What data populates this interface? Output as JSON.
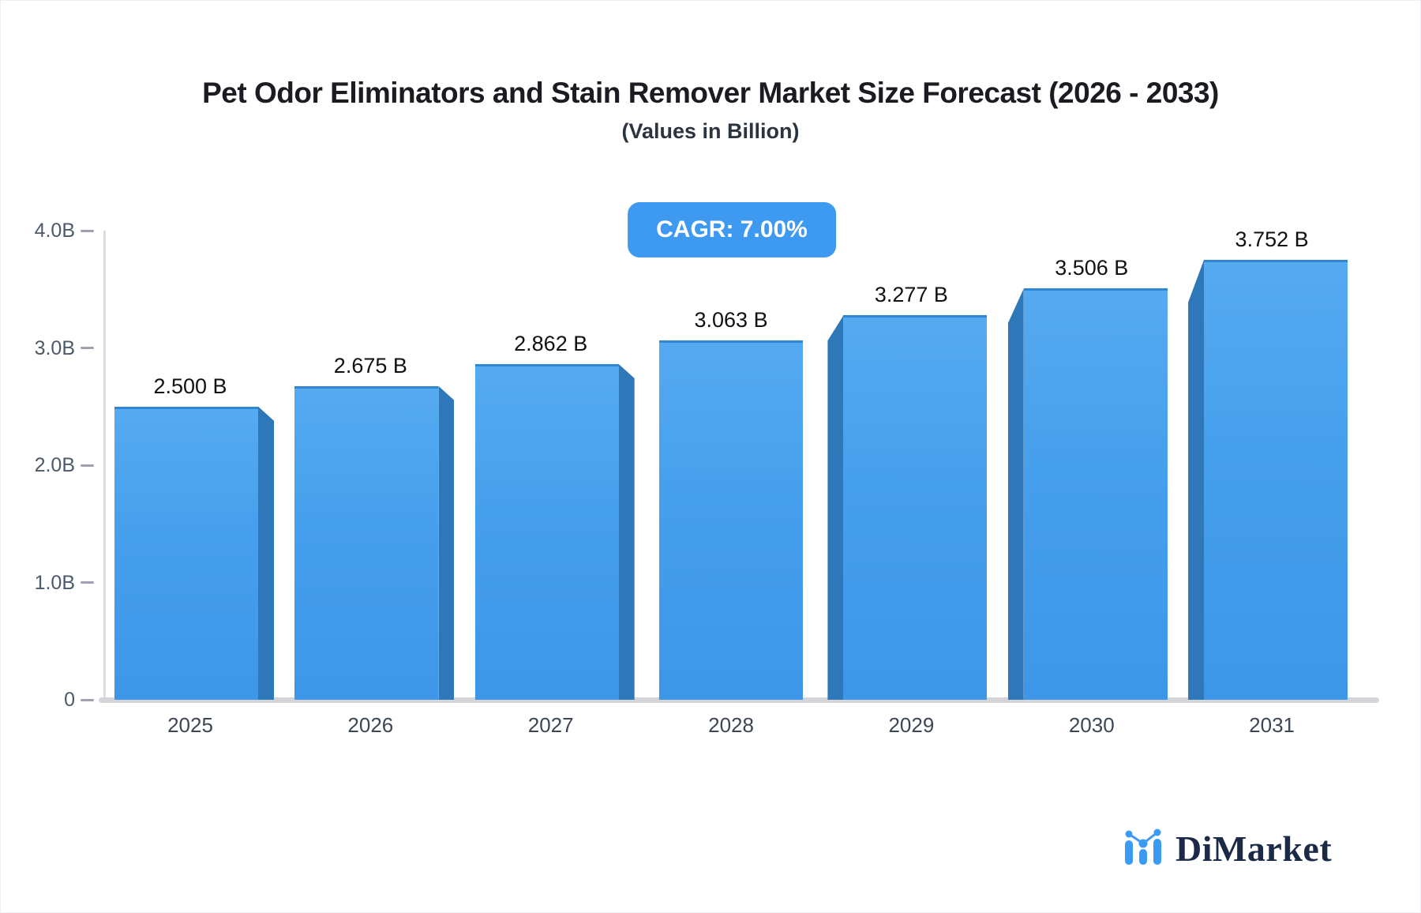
{
  "title": "Pet Odor Eliminators and Stain Remover Market Size Forecast (2026 - 2033)",
  "subtitle": "(Values in Billion)",
  "badge": {
    "label": "CAGR: 7.00%"
  },
  "chart_data": {
    "type": "bar",
    "categories": [
      "2025",
      "2026",
      "2027",
      "2028",
      "2029",
      "2030",
      "2031"
    ],
    "values": [
      2.5,
      2.675,
      2.862,
      3.063,
      3.277,
      3.506,
      3.752
    ],
    "value_labels": [
      "2.500 B",
      "2.675 B",
      "2.862 B",
      "3.063 B",
      "3.277 B",
      "3.506 B",
      "3.752 B"
    ],
    "title": "Pet Odor Eliminators and Stain Remover Market Size Forecast (2026 - 2033)",
    "subtitle": "(Values in Billion)",
    "xlabel": "",
    "ylabel": "",
    "ylim": [
      0,
      4.0
    ],
    "ytick_values": [
      0,
      1,
      2,
      3,
      4
    ],
    "ytick_labels": [
      "0",
      "1.0B",
      "2.0B",
      "3.0B",
      "4.0B"
    ],
    "grid": false,
    "legend": false,
    "annotation": "CAGR: 7.00%",
    "colors": {
      "bar_face": "#42a0ec",
      "bar_side": "#2e78ba",
      "badge_bg": "#3d9af0",
      "badge_text": "#ffffff",
      "axis": "#d4d5d9",
      "title_text": "#1a1c22"
    }
  },
  "logo": {
    "text": "DiMarket",
    "icon": "bar-line-chart-icon",
    "icon_color": "#3b9bf4",
    "text_color": "#1b2a47"
  }
}
